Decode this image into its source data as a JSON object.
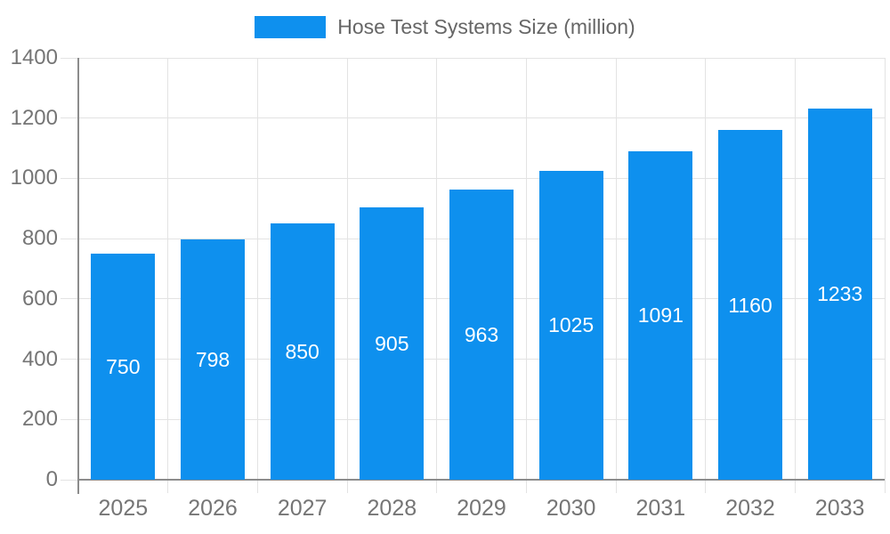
{
  "legend": {
    "label": "Hose Test Systems Size (million)"
  },
  "chart_data": {
    "type": "bar",
    "title": "",
    "xlabel": "",
    "ylabel": "",
    "categories": [
      "2025",
      "2026",
      "2027",
      "2028",
      "2029",
      "2030",
      "2031",
      "2032",
      "2033"
    ],
    "series": [
      {
        "name": "Hose Test Systems Size (million)",
        "values": [
          750,
          798,
          850,
          905,
          963,
          1025,
          1091,
          1160,
          1233
        ]
      }
    ],
    "value_labels_shown": true,
    "ylim": [
      0,
      1400
    ],
    "ytick_step": 200,
    "ytick_labels": [
      "0",
      "200",
      "400",
      "600",
      "800",
      "1000",
      "1200",
      "1400"
    ],
    "grid": true,
    "legend_position": "top-center",
    "colors": {
      "bar": "#0e90ee",
      "value_label": "#ffffff",
      "axis_label": "#757575",
      "legend_text": "#666666",
      "gridline": "#e3e3e3",
      "axis_line": "#8c8c8c",
      "background": "#ffffff"
    }
  }
}
